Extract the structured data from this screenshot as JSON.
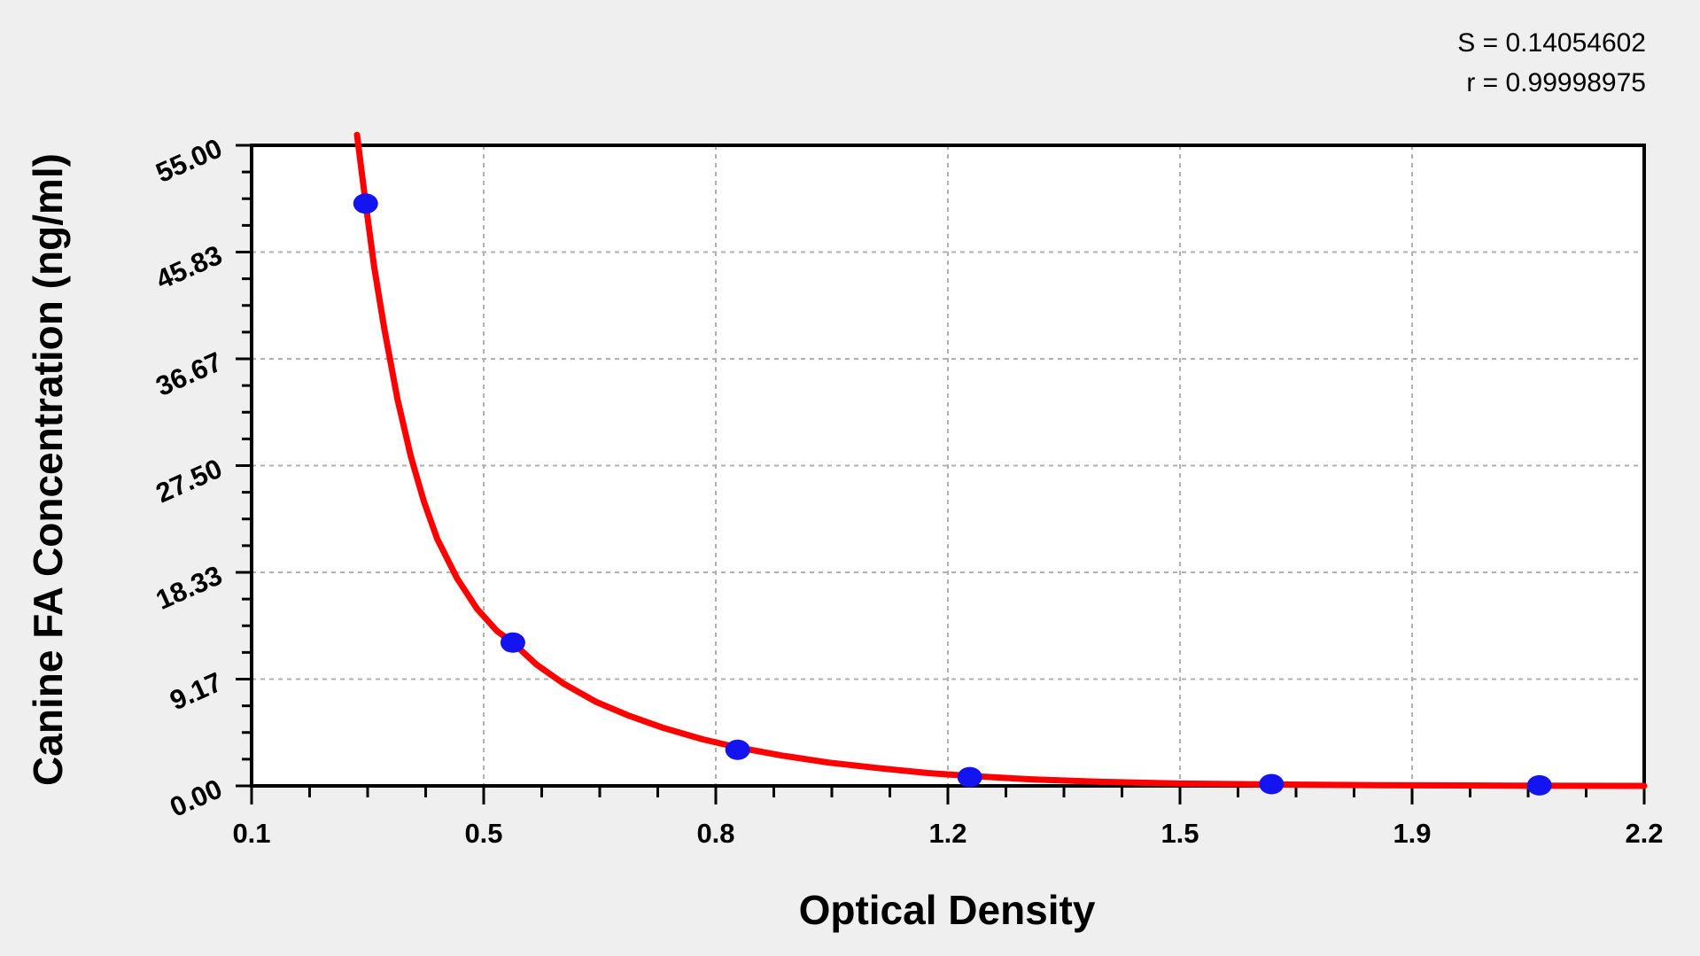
{
  "page": {
    "background": "#efefef"
  },
  "stats": {
    "s": "S = 0.14054602",
    "r": "r = 0.99998975"
  },
  "chart_data": {
    "type": "scatter",
    "title": "",
    "xlabel": "Optical Density",
    "ylabel": "Canine FA Concentration (ng/ml)",
    "xlim": [
      0.1,
      2.2
    ],
    "ylim": [
      0,
      55
    ],
    "x_ticks": {
      "values": [
        0.1,
        0.45,
        0.8,
        1.15,
        1.5,
        1.85,
        2.2
      ],
      "labels": [
        "0.1",
        "0.5",
        "0.8",
        "1.2",
        "1.5",
        "1.9",
        "2.2"
      ],
      "minor_divisions": 4
    },
    "y_ticks": {
      "values": [
        0,
        9.1667,
        18.3333,
        27.5,
        36.6667,
        45.8333,
        55
      ],
      "labels": [
        "0.00",
        "9.17",
        "18.33",
        "27.50",
        "36.67",
        "45.83",
        "55.00"
      ],
      "minor_divisions": 4
    },
    "grid": {
      "show": true,
      "style": "dashed",
      "color": "#b0b0b0",
      "on": "interior-major-ticks"
    },
    "annotations": {
      "S": "0.14054602",
      "r": "0.99998975"
    },
    "series": [
      {
        "name": "standards",
        "type": "scatter",
        "color": "#1414f0",
        "points": [
          [
            0.272,
            50.0
          ],
          [
            0.494,
            12.3
          ],
          [
            0.833,
            3.1
          ],
          [
            1.183,
            0.75
          ],
          [
            1.638,
            0.15
          ],
          [
            2.042,
            0.05
          ]
        ]
      },
      {
        "name": "fit-curve",
        "type": "line",
        "color": "#ff0000",
        "points": [
          [
            0.259,
            55.9
          ],
          [
            0.261,
            55.0
          ],
          [
            0.272,
            50.0
          ],
          [
            0.285,
            44.5
          ],
          [
            0.3,
            39.3
          ],
          [
            0.32,
            33.2
          ],
          [
            0.34,
            28.3
          ],
          [
            0.36,
            24.4
          ],
          [
            0.38,
            21.2
          ],
          [
            0.41,
            17.8
          ],
          [
            0.44,
            15.2
          ],
          [
            0.47,
            13.3
          ],
          [
            0.494,
            12.3
          ],
          [
            0.53,
            10.4
          ],
          [
            0.57,
            8.8
          ],
          [
            0.62,
            7.2
          ],
          [
            0.67,
            6.0
          ],
          [
            0.72,
            5.0
          ],
          [
            0.78,
            4.0
          ],
          [
            0.833,
            3.3
          ],
          [
            0.9,
            2.6
          ],
          [
            0.97,
            2.0
          ],
          [
            1.05,
            1.5
          ],
          [
            1.12,
            1.1
          ],
          [
            1.183,
            0.85
          ],
          [
            1.28,
            0.55
          ],
          [
            1.38,
            0.35
          ],
          [
            1.5,
            0.2
          ],
          [
            1.638,
            0.12
          ],
          [
            1.8,
            0.06
          ],
          [
            2.0,
            0.02
          ],
          [
            2.2,
            0.0
          ]
        ]
      }
    ],
    "colors": {
      "curve": "#ff0000",
      "point": "#1414f0",
      "axis": "#000000",
      "grid": "#b0b0b0",
      "plot_background": "#ffffff",
      "page_background": "#efefef"
    }
  }
}
